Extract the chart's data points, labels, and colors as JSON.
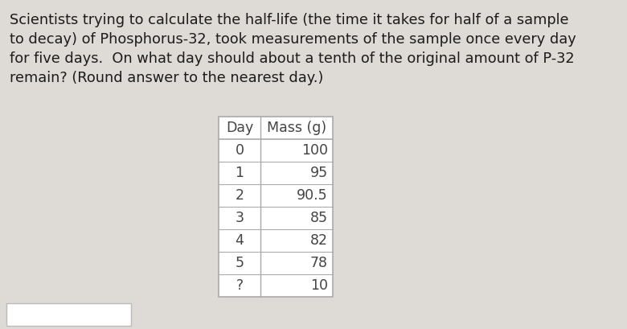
{
  "paragraph_lines": [
    "Scientists trying to calculate the half-life (the time it takes for half of a sample",
    "to decay) of Phosphorus-32, took measurements of the sample once every day",
    "for five days.  On what day should about a tenth of the original amount of P-32",
    "remain? (Round answer to the nearest day.)"
  ],
  "col_headers": [
    "Day",
    "Mass (g)"
  ],
  "rows": [
    [
      "0",
      "100"
    ],
    [
      "1",
      "95"
    ],
    [
      "2",
      "90.5"
    ],
    [
      "3",
      "85"
    ],
    [
      "4",
      "82"
    ],
    [
      "5",
      "78"
    ],
    [
      "?",
      "10"
    ]
  ],
  "bg_color": "#dedad5",
  "cell_text_color": "#444444",
  "para_text_color": "#1c1c1c",
  "table_border_color": "#aaaaaa",
  "font_size_para": 12.8,
  "font_size_table": 12.5,
  "fig_width": 7.8,
  "fig_height": 4.09,
  "dpi": 100
}
